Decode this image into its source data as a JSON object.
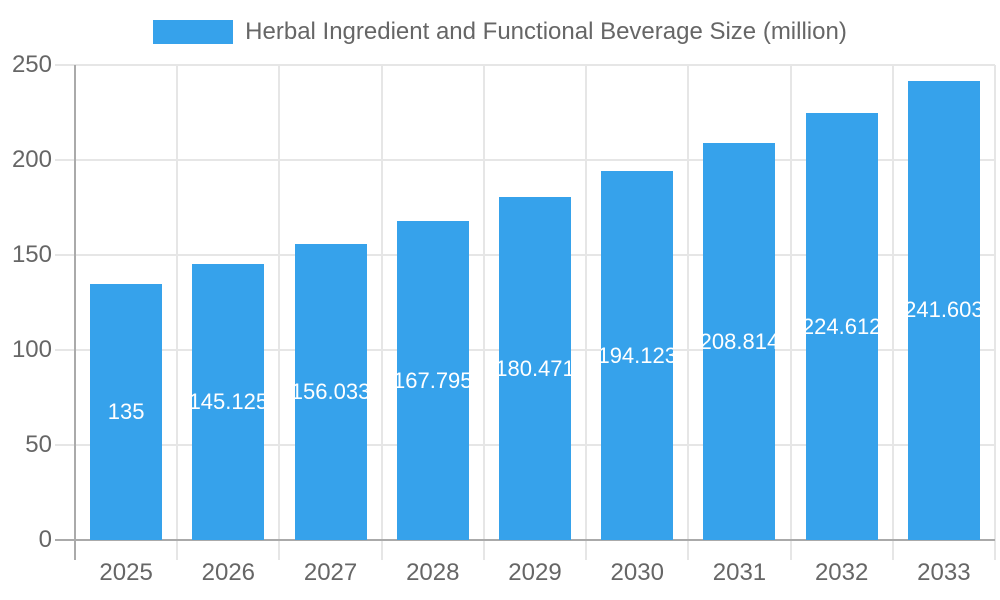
{
  "legend": {
    "label": "Herbal Ingredient and Functional Beverage Size (million)"
  },
  "chart_data": {
    "type": "bar",
    "title": "Herbal Ingredient and Functional Beverage Size (million)",
    "categories": [
      "2025",
      "2026",
      "2027",
      "2028",
      "2029",
      "2030",
      "2031",
      "2032",
      "2033"
    ],
    "series": [
      {
        "name": "Herbal Ingredient and Functional Beverage Size (million)",
        "values": [
          135,
          145.125,
          156.033,
          167.795,
          180.471,
          194.123,
          208.814,
          224.612,
          241.603
        ]
      }
    ],
    "value_labels": [
      "135",
      "145.125",
      "156.033",
      "167.795",
      "180.471",
      "194.123",
      "208.814",
      "224.612",
      "241.603"
    ],
    "xlabel": "",
    "ylabel": "",
    "ylim": [
      0,
      250
    ],
    "yticks": [
      0,
      50,
      100,
      150,
      200,
      250
    ],
    "grid": true,
    "legend_position": "top",
    "value_label_position": "center-inside",
    "colors": {
      "bar": "#36A2EB",
      "grid": "#E6E6E6",
      "axis": "#AAAAAA",
      "tick_label": "#666666",
      "legend_text": "#666666",
      "value_label": "#FFFFFF",
      "background": "#FFFFFF"
    }
  }
}
